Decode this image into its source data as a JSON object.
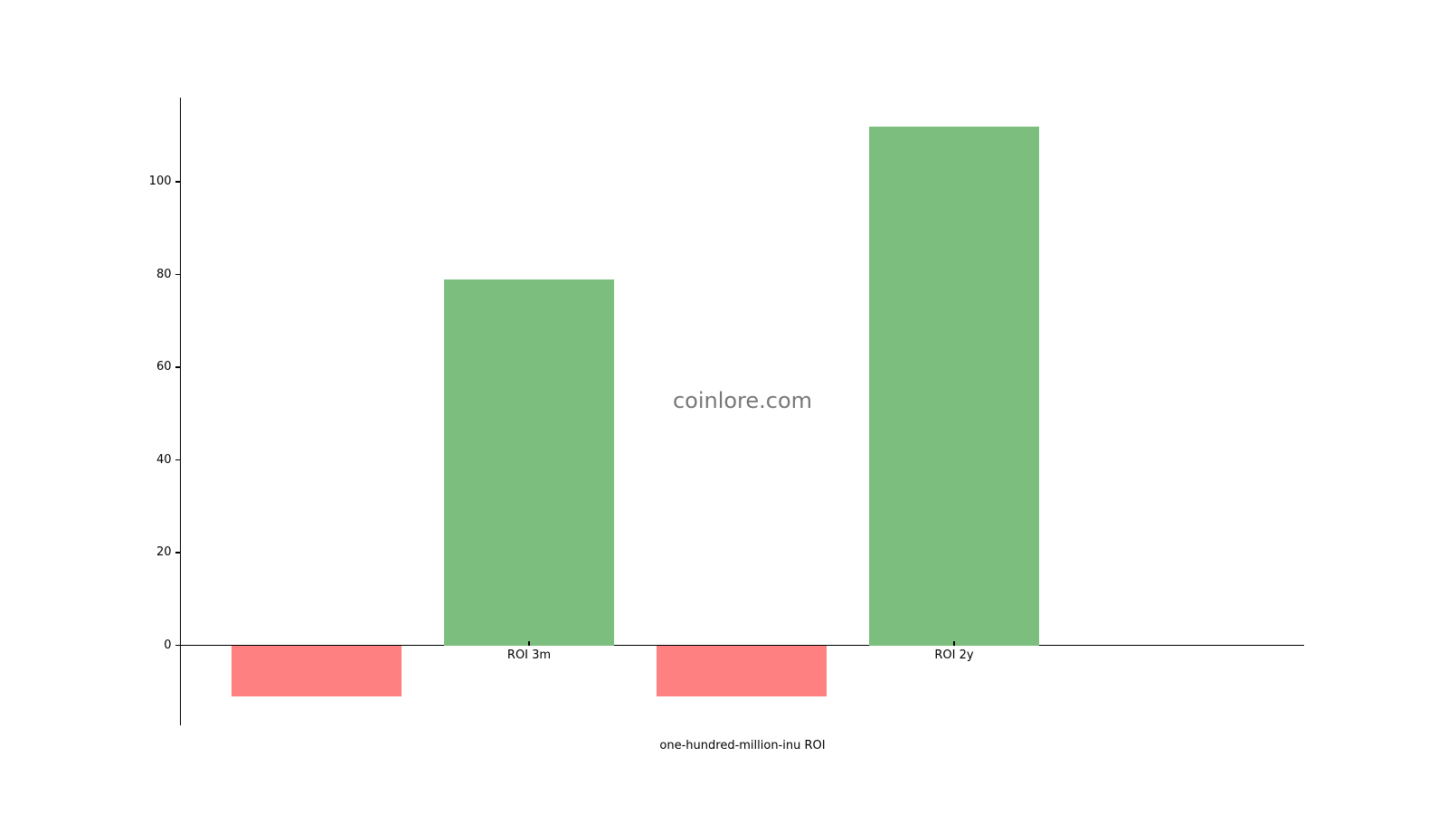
{
  "chart_data": {
    "type": "bar",
    "title": "one-hundred-million-inu ROI",
    "watermark": "coinlore.com",
    "categories": [
      "",
      "ROI 3m",
      "",
      "ROI 2y"
    ],
    "values": [
      -11,
      79,
      -11,
      112
    ],
    "bar_colors": [
      "#fe8080",
      "#7cbe7e",
      "#fe8080",
      "#7cbe7e"
    ],
    "x_ticks": [
      {
        "index": 1,
        "label": "ROI 3m"
      },
      {
        "index": 3,
        "label": "ROI 2y"
      }
    ],
    "y_ticks": [
      0,
      20,
      40,
      60,
      80,
      100
    ],
    "ylim": [
      -17.15,
      118.15
    ],
    "grid": false,
    "legend": "none",
    "xlabel": "one-hundred-million-inu ROI",
    "ylabel": "",
    "colors": {
      "positive": "#7cbe7e",
      "negative": "#fe8080",
      "axis": "#000000",
      "watermark": "#777777",
      "text": "#000000"
    }
  }
}
